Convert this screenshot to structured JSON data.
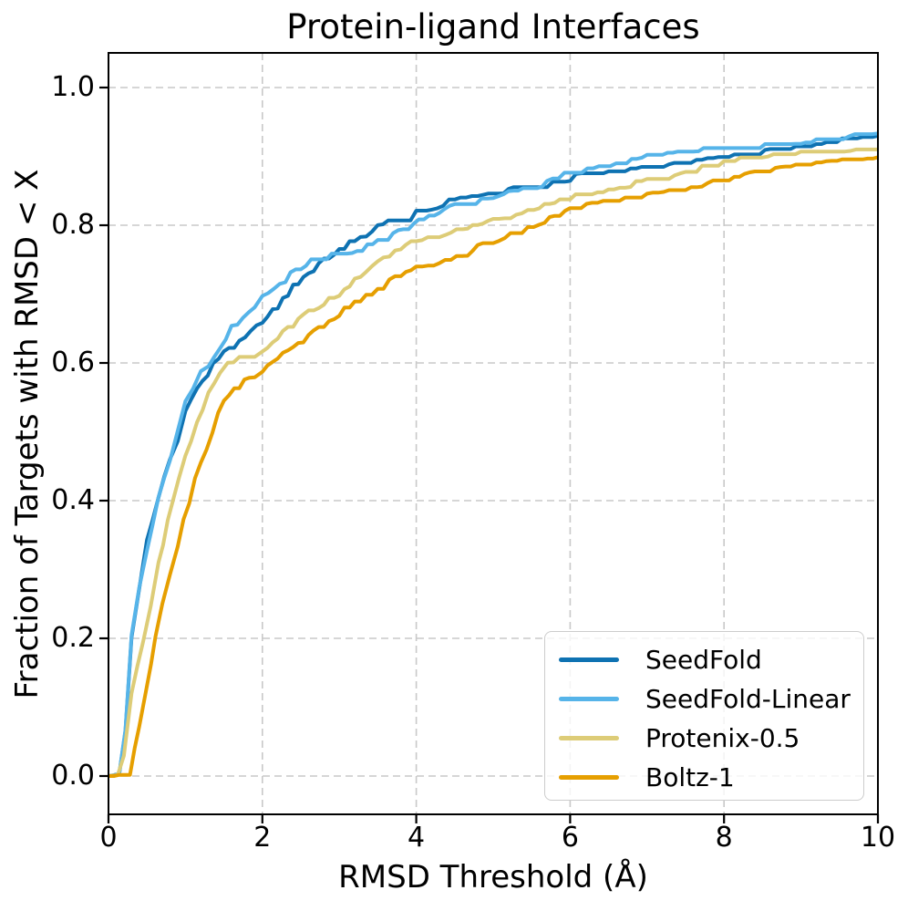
{
  "chart_data": {
    "type": "line",
    "title": "Protein-ligand Interfaces",
    "xlabel": "RMSD Threshold (Å)",
    "ylabel": "Fraction of Targets with RMSD < X",
    "xlim": [
      0,
      10
    ],
    "ylim": [
      -0.055,
      1.05
    ],
    "grid": {
      "on": true,
      "style": "dashed",
      "color": "#c9c9c9"
    },
    "legend_position": "lower right",
    "xticks": {
      "values": [
        0,
        2,
        4,
        6,
        8,
        10
      ],
      "labels": [
        "0",
        "2",
        "4",
        "6",
        "8",
        "10"
      ]
    },
    "yticks": {
      "values": [
        0,
        0.2,
        0.4,
        0.6,
        0.8,
        1.0
      ],
      "labels": [
        "0.0",
        "0.2",
        "0.4",
        "0.6",
        "0.8",
        "1.0"
      ]
    },
    "series": [
      {
        "name": "SeedFold",
        "color": "#0e72b2",
        "points": [
          [
            0,
            0
          ],
          [
            0.14,
            0
          ],
          [
            0.22,
            0.07
          ],
          [
            0.3,
            0.2
          ],
          [
            0.4,
            0.275
          ],
          [
            0.5,
            0.34
          ],
          [
            0.65,
            0.41
          ],
          [
            0.8,
            0.465
          ],
          [
            0.9,
            0.49
          ],
          [
            1.0,
            0.525
          ],
          [
            1.15,
            0.56
          ],
          [
            1.36,
            0.6
          ],
          [
            1.5,
            0.612
          ],
          [
            1.7,
            0.628
          ],
          [
            1.85,
            0.645
          ],
          [
            2.0,
            0.658
          ],
          [
            2.2,
            0.684
          ],
          [
            2.4,
            0.71
          ],
          [
            2.6,
            0.73
          ],
          [
            2.8,
            0.75
          ],
          [
            3.0,
            0.762
          ],
          [
            3.2,
            0.776
          ],
          [
            3.5,
            0.8
          ],
          [
            3.7,
            0.804
          ],
          [
            3.85,
            0.807
          ],
          [
            4.0,
            0.816
          ],
          [
            4.2,
            0.826
          ],
          [
            4.5,
            0.835
          ],
          [
            4.8,
            0.84
          ],
          [
            5.0,
            0.845
          ],
          [
            5.2,
            0.85
          ],
          [
            5.45,
            0.852
          ],
          [
            5.7,
            0.857
          ],
          [
            6.0,
            0.868
          ],
          [
            6.3,
            0.872
          ],
          [
            6.5,
            0.875
          ],
          [
            7.0,
            0.88
          ],
          [
            7.5,
            0.888
          ],
          [
            8.0,
            0.9
          ],
          [
            8.4,
            0.905
          ],
          [
            8.8,
            0.912
          ],
          [
            9.2,
            0.917
          ],
          [
            9.6,
            0.922
          ],
          [
            10,
            0.928
          ]
        ]
      },
      {
        "name": "SeedFold-Linear",
        "color": "#56b4e9",
        "points": [
          [
            0,
            0
          ],
          [
            0.14,
            0
          ],
          [
            0.22,
            0.07
          ],
          [
            0.3,
            0.2
          ],
          [
            0.4,
            0.27
          ],
          [
            0.5,
            0.33
          ],
          [
            0.65,
            0.4
          ],
          [
            0.8,
            0.462
          ],
          [
            0.9,
            0.5
          ],
          [
            1.0,
            0.545
          ],
          [
            1.1,
            0.565
          ],
          [
            1.2,
            0.585
          ],
          [
            1.3,
            0.6
          ],
          [
            1.45,
            0.625
          ],
          [
            1.6,
            0.65
          ],
          [
            1.75,
            0.67
          ],
          [
            1.9,
            0.685
          ],
          [
            2.0,
            0.695
          ],
          [
            2.15,
            0.705
          ],
          [
            2.3,
            0.72
          ],
          [
            2.5,
            0.74
          ],
          [
            2.7,
            0.75
          ],
          [
            2.9,
            0.754
          ],
          [
            3.1,
            0.758
          ],
          [
            3.3,
            0.765
          ],
          [
            3.5,
            0.775
          ],
          [
            3.7,
            0.785
          ],
          [
            3.9,
            0.795
          ],
          [
            4.1,
            0.808
          ],
          [
            4.3,
            0.82
          ],
          [
            4.5,
            0.826
          ],
          [
            4.7,
            0.83
          ],
          [
            5.0,
            0.84
          ],
          [
            5.2,
            0.846
          ],
          [
            5.45,
            0.854
          ],
          [
            5.7,
            0.863
          ],
          [
            6.0,
            0.875
          ],
          [
            6.3,
            0.88
          ],
          [
            6.6,
            0.886
          ],
          [
            7.0,
            0.9
          ],
          [
            7.4,
            0.905
          ],
          [
            7.8,
            0.907
          ],
          [
            8.2,
            0.909
          ],
          [
            8.6,
            0.913
          ],
          [
            9.0,
            0.918
          ],
          [
            9.4,
            0.923
          ],
          [
            9.7,
            0.927
          ],
          [
            10,
            0.932
          ]
        ]
      },
      {
        "name": "Protenix-0.5",
        "color": "#ddcc77",
        "points": [
          [
            0,
            0
          ],
          [
            0.12,
            0
          ],
          [
            0.2,
            0.03
          ],
          [
            0.3,
            0.12
          ],
          [
            0.45,
            0.2
          ],
          [
            0.55,
            0.25
          ],
          [
            0.65,
            0.31
          ],
          [
            0.83,
            0.4
          ],
          [
            1.0,
            0.46
          ],
          [
            1.15,
            0.51
          ],
          [
            1.3,
            0.555
          ],
          [
            1.45,
            0.585
          ],
          [
            1.55,
            0.6
          ],
          [
            1.7,
            0.605
          ],
          [
            1.9,
            0.608
          ],
          [
            2.0,
            0.612
          ],
          [
            2.2,
            0.635
          ],
          [
            2.4,
            0.655
          ],
          [
            2.6,
            0.672
          ],
          [
            2.8,
            0.685
          ],
          [
            3.0,
            0.7
          ],
          [
            3.2,
            0.72
          ],
          [
            3.5,
            0.745
          ],
          [
            3.8,
            0.765
          ],
          [
            4.0,
            0.776
          ],
          [
            4.3,
            0.783
          ],
          [
            4.6,
            0.791
          ],
          [
            4.8,
            0.8
          ],
          [
            5.0,
            0.805
          ],
          [
            5.3,
            0.812
          ],
          [
            5.6,
            0.825
          ],
          [
            6.0,
            0.838
          ],
          [
            6.5,
            0.851
          ],
          [
            7.0,
            0.862
          ],
          [
            7.5,
            0.875
          ],
          [
            8.0,
            0.89
          ],
          [
            8.5,
            0.897
          ],
          [
            9.0,
            0.902
          ],
          [
            9.5,
            0.905
          ],
          [
            10,
            0.907
          ]
        ]
      },
      {
        "name": "Boltz-1",
        "color": "#e69f00",
        "points": [
          [
            0,
            0
          ],
          [
            0.28,
            0
          ],
          [
            0.4,
            0.07
          ],
          [
            0.5,
            0.13
          ],
          [
            0.61,
            0.2
          ],
          [
            0.7,
            0.245
          ],
          [
            0.8,
            0.29
          ],
          [
            0.9,
            0.335
          ],
          [
            1.05,
            0.4
          ],
          [
            1.2,
            0.455
          ],
          [
            1.35,
            0.5
          ],
          [
            1.5,
            0.545
          ],
          [
            1.7,
            0.567
          ],
          [
            1.9,
            0.583
          ],
          [
            2.0,
            0.59
          ],
          [
            2.2,
            0.608
          ],
          [
            2.4,
            0.622
          ],
          [
            2.6,
            0.64
          ],
          [
            2.8,
            0.655
          ],
          [
            3.0,
            0.67
          ],
          [
            3.2,
            0.686
          ],
          [
            3.5,
            0.706
          ],
          [
            3.8,
            0.726
          ],
          [
            4.0,
            0.738
          ],
          [
            4.3,
            0.748
          ],
          [
            4.6,
            0.758
          ],
          [
            5.0,
            0.776
          ],
          [
            5.3,
            0.786
          ],
          [
            5.6,
            0.8
          ],
          [
            6.0,
            0.822
          ],
          [
            6.5,
            0.835
          ],
          [
            7.0,
            0.841
          ],
          [
            7.5,
            0.852
          ],
          [
            8.0,
            0.864
          ],
          [
            8.4,
            0.873
          ],
          [
            8.8,
            0.882
          ],
          [
            9.2,
            0.887
          ],
          [
            9.6,
            0.891
          ],
          [
            10,
            0.895
          ]
        ]
      }
    ]
  }
}
